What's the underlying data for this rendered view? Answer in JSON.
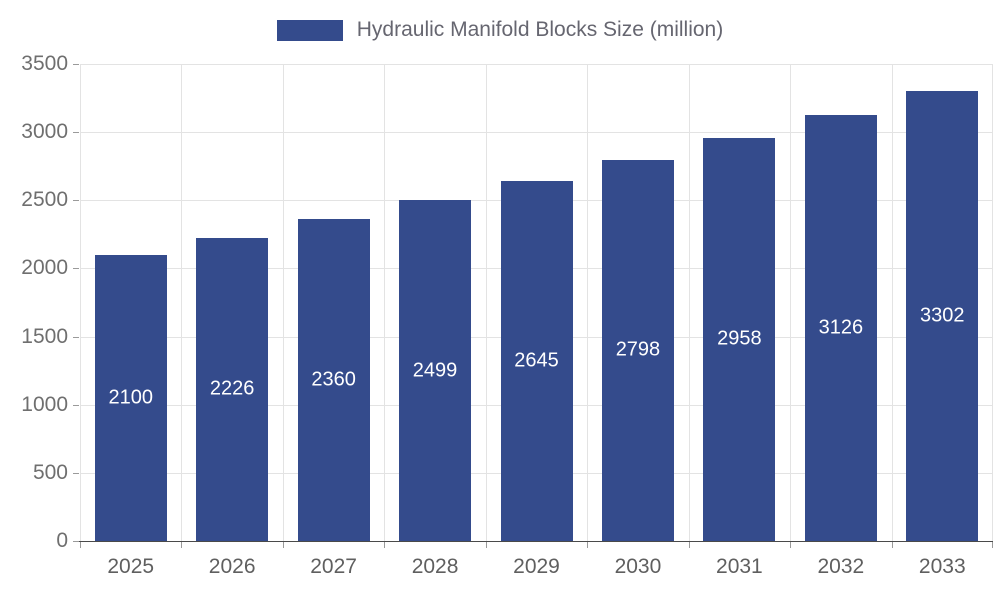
{
  "legend": {
    "label": "Hydraulic Manifold Blocks Size (million)"
  },
  "chart_data": {
    "type": "bar",
    "title": "Hydraulic Manifold Blocks Size (million)",
    "categories": [
      "2025",
      "2026",
      "2027",
      "2028",
      "2029",
      "2030",
      "2031",
      "2032",
      "2033"
    ],
    "values": [
      2100,
      2226,
      2360,
      2499,
      2645,
      2798,
      2958,
      3126,
      3302
    ],
    "xlabel": "",
    "ylabel": "",
    "ylim": [
      0,
      3500
    ],
    "ytick_step": 500,
    "grid": true,
    "legend_position": "top",
    "value_labels": "inside-center"
  },
  "colors": {
    "bar": "#344b8c",
    "grid": "#e3e3e3",
    "axis": "#4a4a4a",
    "y_tick_label": "#6f6f6f",
    "x_tick_label": "#5f5f5f",
    "value_label": "#ffffff",
    "legend_text": "#666670",
    "background": "#ffffff"
  }
}
